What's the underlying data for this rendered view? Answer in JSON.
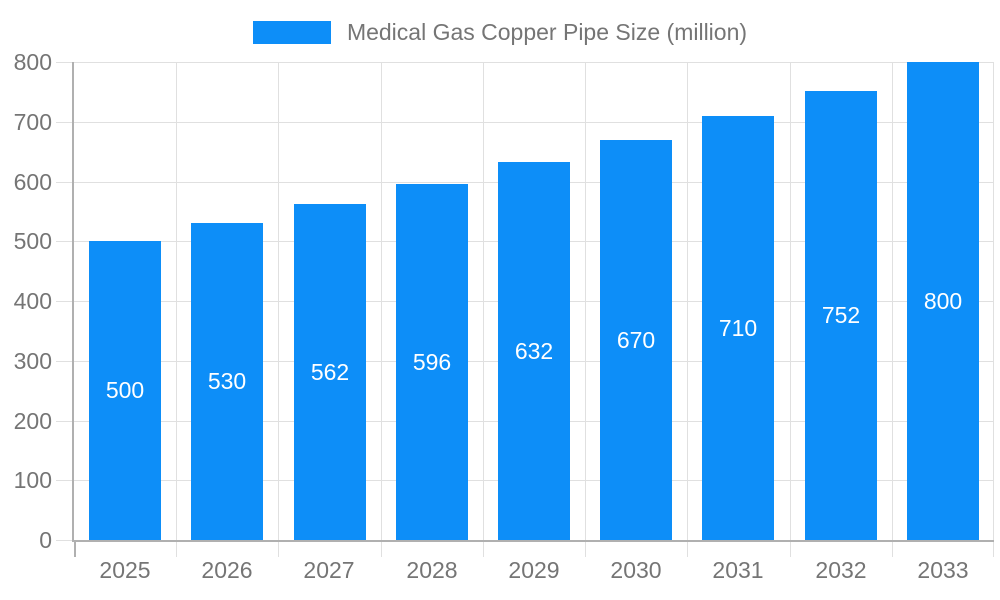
{
  "legend": {
    "label": "Medical Gas Copper Pipe Size (million)"
  },
  "chart_data": {
    "type": "bar",
    "title": "Medical Gas Copper Pipe Size (million)",
    "categories": [
      "2025",
      "2026",
      "2027",
      "2028",
      "2029",
      "2030",
      "2031",
      "2032",
      "2033"
    ],
    "values": [
      500,
      530,
      562,
      596,
      632,
      670,
      710,
      752,
      800
    ],
    "xlabel": "",
    "ylabel": "",
    "ylim": [
      0,
      800
    ],
    "yticks": [
      0,
      100,
      200,
      300,
      400,
      500,
      600,
      700,
      800
    ],
    "grid": true,
    "legend_position": "top-center",
    "bar_color": "#0d8ef8",
    "value_label_color": "#ffffff",
    "axis_text_color": "#757575",
    "gridline_color": "#e0e0e0",
    "axis_line_color": "#b0b0b0"
  }
}
